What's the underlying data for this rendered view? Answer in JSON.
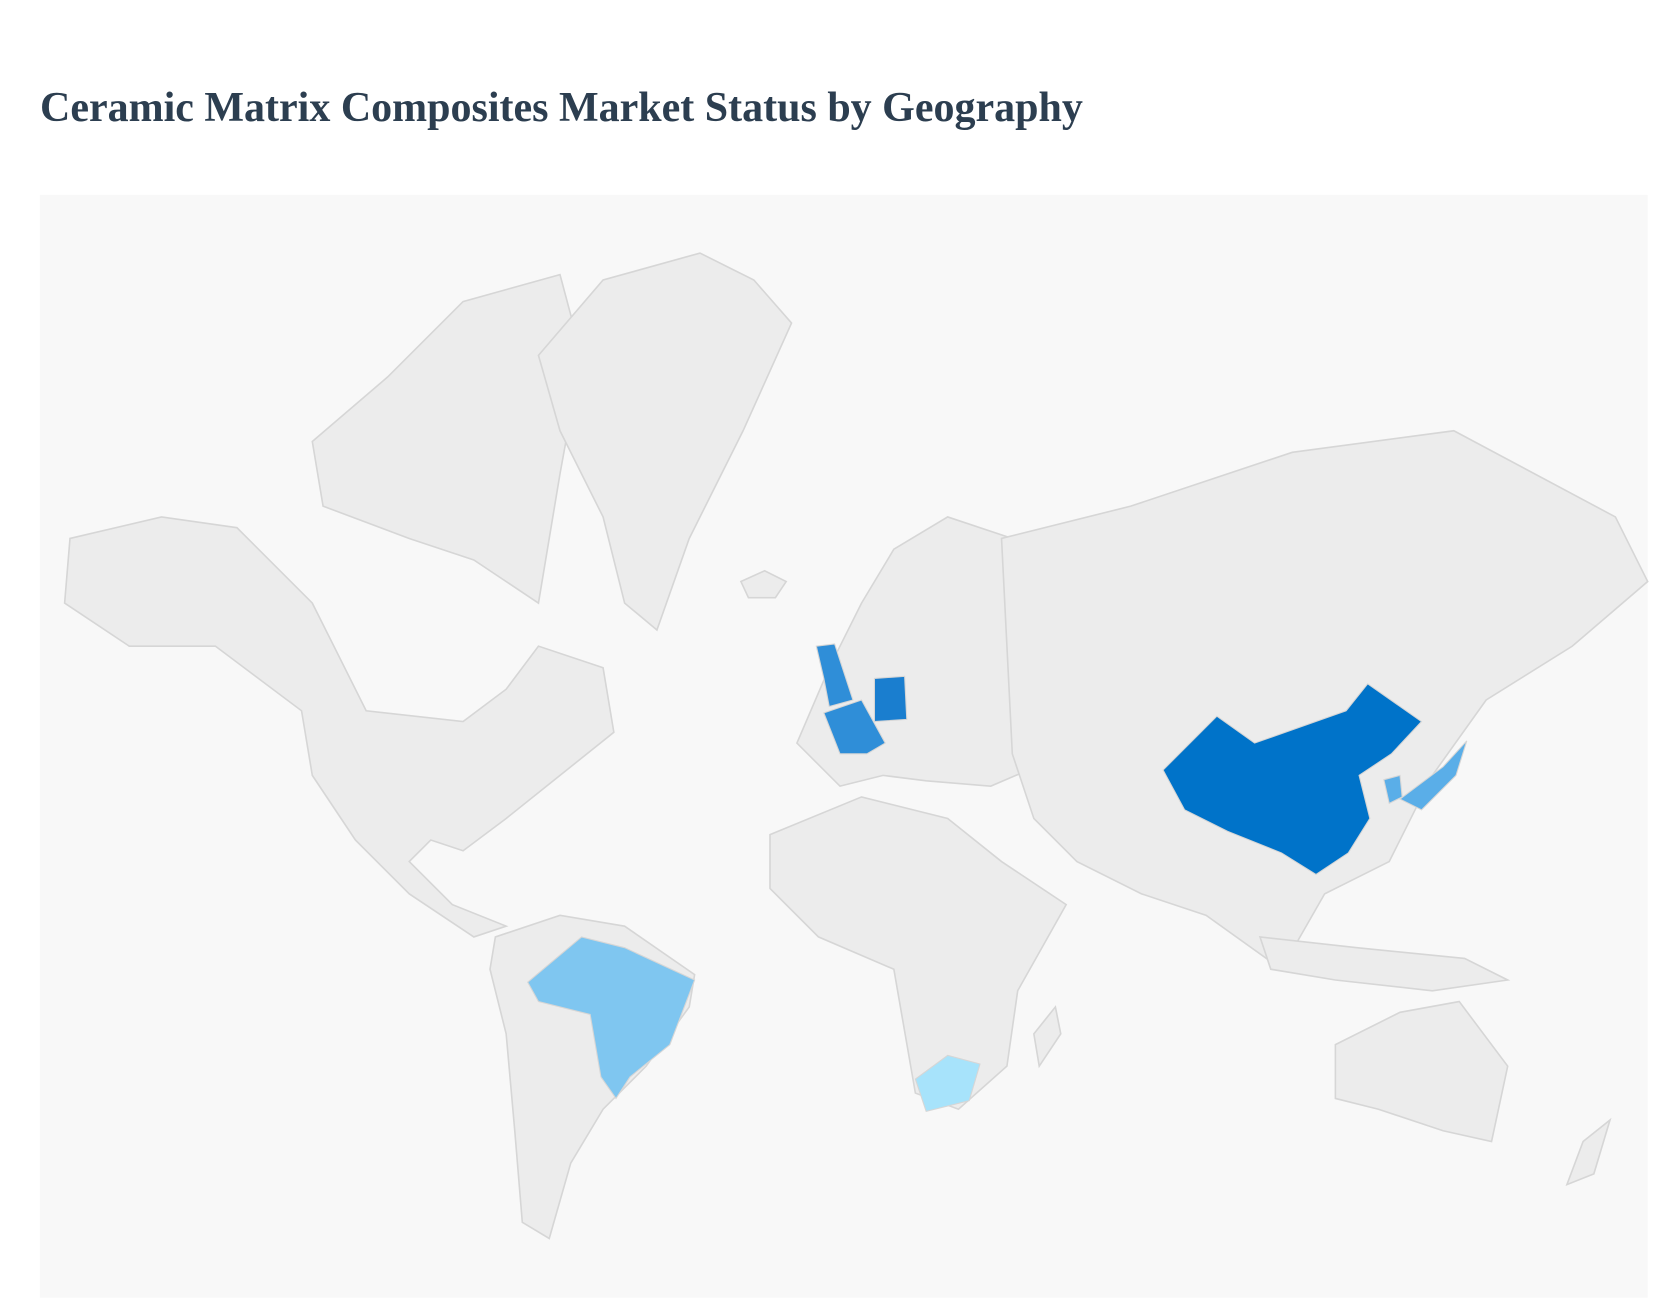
{
  "title": "Ceramic Matrix Composites Market Status by Geography",
  "map": {
    "projection": "world",
    "background_color": "#f8f8f8",
    "land_color": "#ececec",
    "border_color": "#d6d6d6",
    "highlighted": [
      {
        "code": "CN",
        "color": "#0073c9"
      },
      {
        "code": "DE",
        "color": "#1a7ecf"
      },
      {
        "code": "GB",
        "color": "#2f8ed8"
      },
      {
        "code": "FR",
        "color": "#2f8ed8"
      },
      {
        "code": "JP",
        "color": "#5aaee8"
      },
      {
        "code": "KR",
        "color": "#5aaee8"
      },
      {
        "code": "BR",
        "color": "#7fc6f0"
      },
      {
        "code": "ZA",
        "color": "#a7e3fb"
      }
    ]
  }
}
